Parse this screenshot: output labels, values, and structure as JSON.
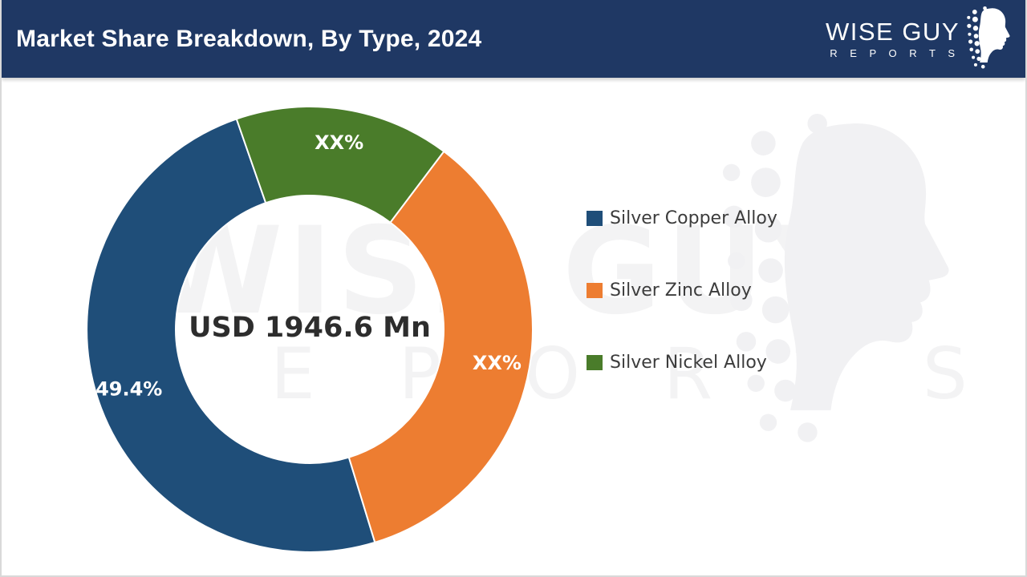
{
  "header": {
    "title": "Market Share Breakdown, By Type, 2024",
    "background_color": "#1F3864"
  },
  "logo": {
    "name": "WISE GUY",
    "tagline": "R E P O R T S",
    "face_icon": "dotted-face-profile"
  },
  "watermark": {
    "line1": "WISE GUY",
    "line2": "R E P O R T S",
    "face_icon": "dotted-face-profile",
    "color": "#f3f3f4"
  },
  "chart_data": {
    "type": "donut",
    "title": "Market Share Breakdown, By Type, 2024",
    "center_label": "USD 1946.6 Mn",
    "start_angle_deg": 163,
    "direction": "clockwise",
    "inner_radius_ratio": 0.6,
    "slices": [
      {
        "label": "Silver Copper Alloy",
        "value": 49.4,
        "display": "49.4%",
        "color": "#1F4E79"
      },
      {
        "label": "Silver Nickel Alloy",
        "value": 15.6,
        "display": "XX%",
        "color": "#4A7C2A"
      },
      {
        "label": "Silver Zinc Alloy",
        "value": 35.0,
        "display": "XX%",
        "color": "#ED7D31"
      }
    ],
    "legend_position": "right",
    "legend": [
      {
        "label": "Silver Copper Alloy",
        "color": "#1F4E79"
      },
      {
        "label": "Silver Zinc Alloy",
        "color": "#ED7D31"
      },
      {
        "label": "Silver Nickel Alloy",
        "color": "#4A7C2A"
      }
    ]
  }
}
